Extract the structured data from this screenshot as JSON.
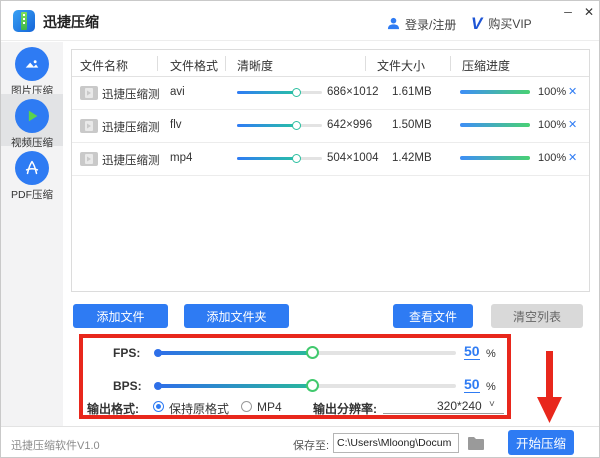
{
  "window": {
    "title": "迅捷压缩",
    "minimize_glyph": "–",
    "close_glyph": "✕"
  },
  "topbar": {
    "login_label": "登录/注册",
    "vip_glyph": "V",
    "vip_label": "购买VIP"
  },
  "sidebar": {
    "items": [
      {
        "label": "图片压缩"
      },
      {
        "label": "视频压缩"
      },
      {
        "label": "PDF压缩"
      }
    ]
  },
  "table": {
    "headers": [
      "文件名称",
      "文件格式",
      "清晰度",
      "文件大小",
      "压缩进度"
    ],
    "rows": [
      {
        "name": "迅捷压缩测",
        "format": "avi",
        "clarity_percent": 70,
        "resolution": "686×1012",
        "size": "1.61MB",
        "progress_percent": 100,
        "progress_label": "100%",
        "close_glyph": "✕"
      },
      {
        "name": "迅捷压缩测",
        "format": "flv",
        "clarity_percent": 70,
        "resolution": "642×996",
        "size": "1.50MB",
        "progress_percent": 100,
        "progress_label": "100%",
        "close_glyph": "✕"
      },
      {
        "name": "迅捷压缩测",
        "format": "mp4",
        "clarity_percent": 70,
        "resolution": "504×1004",
        "size": "1.42MB",
        "progress_percent": 100,
        "progress_label": "100%",
        "close_glyph": "✕"
      }
    ]
  },
  "actions": {
    "add_file": "添加文件",
    "add_folder": "添加文件夹",
    "view_file": "查看文件",
    "clear_list": "清空列表"
  },
  "settings": {
    "fps_label": "FPS:",
    "fps_value": "50",
    "fps_handle_percent": 52,
    "bps_label": "BPS:",
    "bps_value": "50",
    "bps_handle_percent": 52,
    "percent_sign": "%",
    "output_format_label": "输出格式:",
    "format_option_keep": "保持原格式",
    "format_option_mp4": "MP4",
    "resolution_label": "输出分辨率:",
    "resolution_value": "320*240",
    "chevron_glyph": "˅"
  },
  "statusbar": {
    "app_version": "迅捷压缩软件V1.0",
    "save_label": "保存至:",
    "save_path": "C:\\Users\\Mloong\\Docum",
    "start_button": "开始压缩"
  },
  "colors": {
    "accent_blue": "#2e7bf3",
    "annotation_red": "#e8271c",
    "slider_teal": "#28c1a5",
    "progress_green": "#49d173"
  }
}
